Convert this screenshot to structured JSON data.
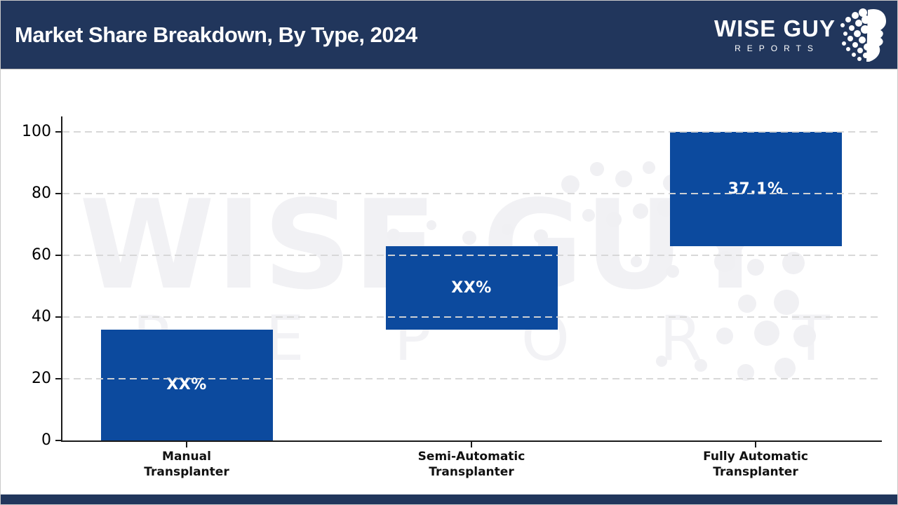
{
  "header": {
    "title": "Market Share Breakdown, By Type, 2024",
    "logo": {
      "line1": "WISE GUY",
      "line2": "REPORTS"
    }
  },
  "watermark": {
    "line1": "WISE GUY",
    "line2": "R E P O R T S"
  },
  "chart_data": {
    "type": "bar",
    "subtype": "waterfall-segments",
    "title": "Market Share Breakdown, By Type, 2024",
    "categories": [
      "Manual Transplanter",
      "Semi-Automatic Transplanter",
      "Fully Automatic Transplanter"
    ],
    "values": [
      36.0,
      26.9,
      37.1
    ],
    "bars": [
      {
        "category_line1": "Manual",
        "category_line2": "Transplanter",
        "start": 0,
        "end": 36.0,
        "label": "XX%"
      },
      {
        "category_line1": "Semi-Automatic",
        "category_line2": "Transplanter",
        "start": 36.0,
        "end": 62.9,
        "label": "XX%"
      },
      {
        "category_line1": "Fully Automatic",
        "category_line2": "Transplanter",
        "start": 62.9,
        "end": 100.0,
        "label": "37.1%"
      }
    ],
    "xlabel": "",
    "ylabel": "",
    "ylim": [
      0,
      105
    ],
    "yticks": [
      0,
      20,
      40,
      60,
      80,
      100
    ],
    "grid": "dashed-horizontal",
    "legend": "none",
    "bar_color": "#0c4a9e",
    "bar_label_color": "#ffffff",
    "header_color": "#21365c",
    "gridline_color": "#d8d8d8",
    "watermark_color": "#f1f1f4"
  }
}
